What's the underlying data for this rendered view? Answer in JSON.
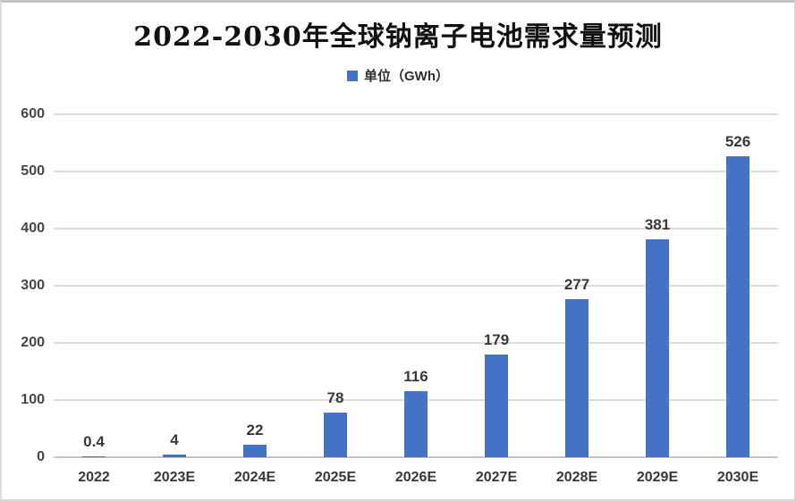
{
  "page": {
    "title": "2022-2030年全球钠离子电池需求量预测"
  },
  "legend": {
    "label": "单位（GWh）"
  },
  "colors": {
    "bar": "#4472C4",
    "gridline": "#dcdcdc",
    "axis_line": "#c4c4c4",
    "tick_label": "#454545",
    "value_label": "#383838",
    "title": "#111111"
  },
  "chart_data": {
    "type": "bar",
    "title": "2022-2030年全球钠离子电池需求量预测",
    "legend_entries": [
      "单位（GWh）"
    ],
    "legend_position": "top",
    "categories": [
      "2022",
      "2023E",
      "2024E",
      "2025E",
      "2026E",
      "2027E",
      "2028E",
      "2029E",
      "2030E"
    ],
    "values": [
      0.4,
      4,
      22,
      78,
      116,
      179,
      277,
      381,
      526
    ],
    "xlabel": "",
    "ylabel": "",
    "ylim": [
      0,
      600
    ],
    "yticks": [
      0,
      100,
      200,
      300,
      400,
      500,
      600
    ],
    "grid": true
  }
}
